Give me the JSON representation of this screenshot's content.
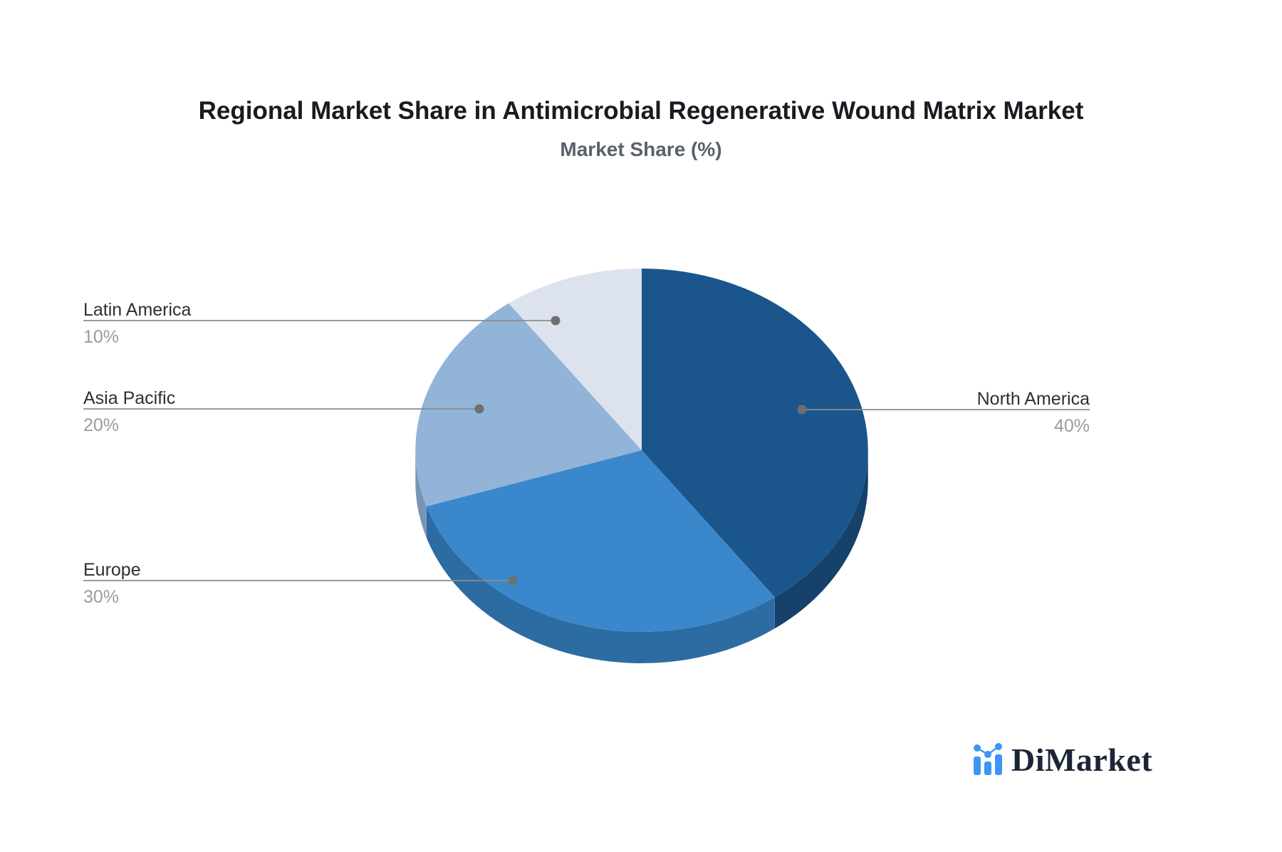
{
  "title": "Regional Market Share in Antimicrobial Regenerative Wound Matrix Market",
  "subtitle": "Market Share (%)",
  "chart_data": {
    "type": "pie",
    "style": "3d-extruded",
    "direction": "clockwise",
    "start_angle_deg": 0,
    "unit": "%",
    "categories": [
      "North America",
      "Europe",
      "Asia Pacific",
      "Latin America"
    ],
    "values": [
      40,
      30,
      20,
      10
    ],
    "value_labels": [
      "40%",
      "30%",
      "20%",
      "10%"
    ],
    "colors": [
      "#1A568C",
      "#3A88CB",
      "#92B4D8",
      "#DDE3EE"
    ],
    "side_colors": [
      "#15416B",
      "#2D6CA3",
      "#7896B4",
      "#B9C2D3"
    ],
    "legend_position": "callout-labels",
    "leader_line_color": "#8c8c8c",
    "label_color": "#2f2f2f",
    "value_label_color": "#9b9b9b"
  },
  "brand": {
    "name": "DiMarket",
    "icon": "bar-chart-logo-icon",
    "icon_color": "#3b96f5"
  }
}
